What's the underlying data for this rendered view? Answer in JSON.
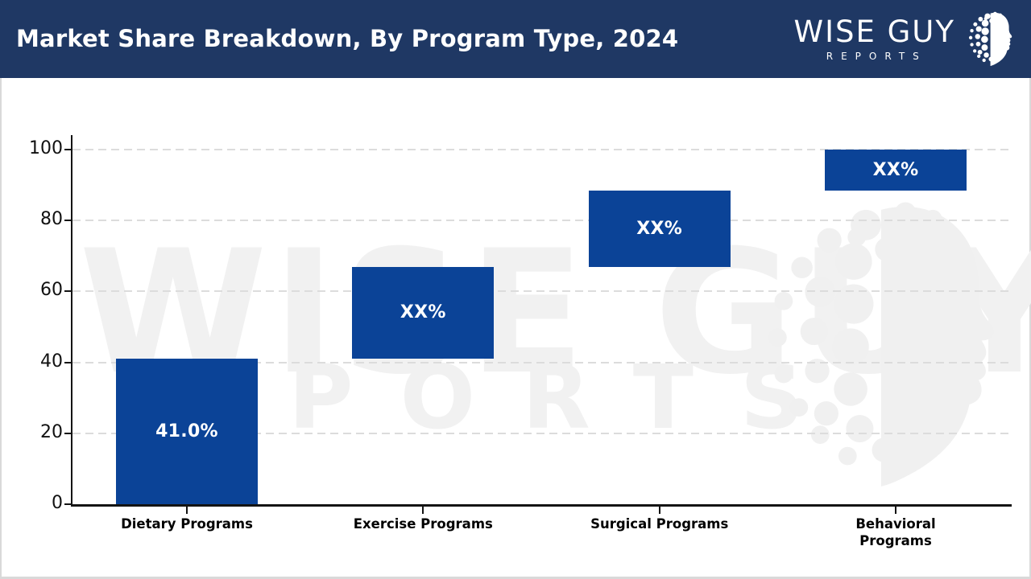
{
  "header": {
    "title": "Market Share Breakdown, By Program Type, 2024",
    "logo": {
      "wordmark": "WISE GUY",
      "subtitle": "REPORTS"
    }
  },
  "watermark": {
    "line1": "WISE GUY",
    "line2": "PORTS"
  },
  "colors": {
    "header_bg": "#1f3864",
    "title_text": "#ffffff",
    "bar": "#0b4397",
    "bar_label": "#ffffff",
    "axis": "#141414",
    "grid": "#dcdcdc",
    "watermark": "#f1f1f1"
  },
  "chart_data": {
    "type": "bar",
    "subtype": "waterfall",
    "title": "Market Share Breakdown, By Program Type, 2024",
    "xlabel": "",
    "ylabel": "",
    "ylim": [
      0,
      103.5
    ],
    "yticks": [
      0,
      20,
      40,
      60,
      80,
      100
    ],
    "grid": "horizontal-dashed",
    "legend": "none",
    "bar_color": "#0b4397",
    "label_color": "#ffffff",
    "bars": [
      {
        "category": "Dietary Programs",
        "label": "41.0%",
        "start": 0,
        "end": 41.0
      },
      {
        "category": "Exercise Programs",
        "label": "XX%",
        "start": 41.0,
        "end": 67.0
      },
      {
        "category": "Surgical Programs",
        "label": "XX%",
        "start": 67.0,
        "end": 88.5
      },
      {
        "category": "Behavioral\nPrograms",
        "label": "XX%",
        "start": 88.5,
        "end": 100.0
      }
    ]
  }
}
